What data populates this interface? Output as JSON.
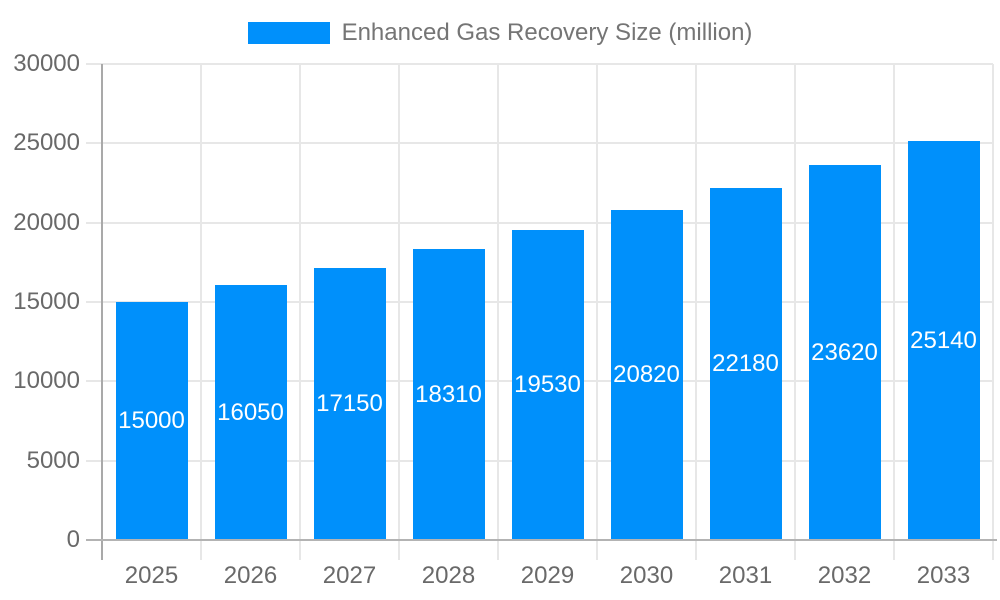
{
  "chart_data": {
    "type": "bar",
    "title": "Enhanced Gas Recovery Size (million)",
    "series": [
      {
        "name": "Enhanced Gas Recovery Size (million)",
        "values": [
          15000,
          16050,
          17150,
          18310,
          19530,
          20820,
          22180,
          23620,
          25140
        ]
      }
    ],
    "categories": [
      "2025",
      "2026",
      "2027",
      "2028",
      "2029",
      "2030",
      "2031",
      "2032",
      "2033"
    ],
    "value_labels": [
      "15000",
      "16050",
      "17150",
      "18310",
      "19530",
      "20820",
      "22180",
      "23620",
      "25140"
    ],
    "ytick_labels": [
      "0",
      "5000",
      "10000",
      "15000",
      "20000",
      "25000",
      "30000"
    ],
    "yticks": [
      0,
      5000,
      10000,
      15000,
      20000,
      25000,
      30000
    ],
    "ylim": [
      0,
      30000
    ],
    "xlabel": "",
    "ylabel": "",
    "grid": "horizontal and vertical category-boundary gridlines",
    "legend_position": "top-center",
    "colors": {
      "bar": "#0090fb",
      "bar_value_text": "#ffffff",
      "grid_line": "#e7e7e7",
      "axis_line": "#b3b3b3",
      "axis_text": "#696969",
      "legend_text": "#757575"
    }
  }
}
